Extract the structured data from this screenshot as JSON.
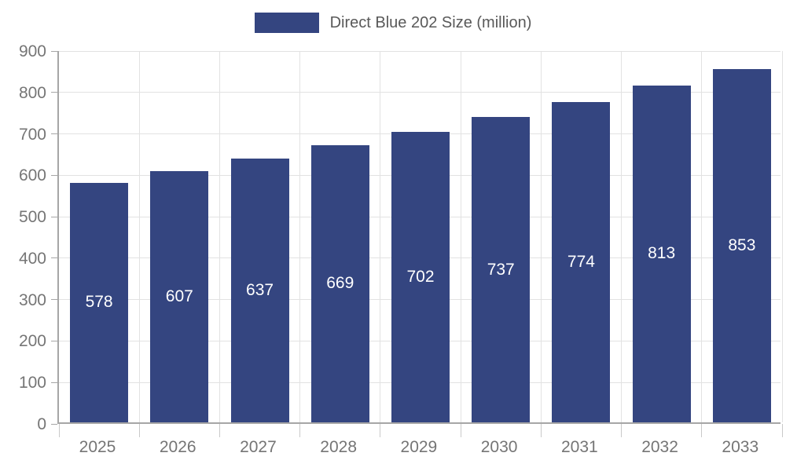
{
  "legend": {
    "label": "Direct Blue 202 Size (million)"
  },
  "chart_data": {
    "type": "bar",
    "title": "Direct Blue 202 Size (million)",
    "categories": [
      "2025",
      "2026",
      "2027",
      "2028",
      "2029",
      "2030",
      "2031",
      "2032",
      "2033"
    ],
    "values": [
      578,
      607,
      637,
      669,
      702,
      737,
      774,
      813,
      853
    ],
    "xlabel": "",
    "ylabel": "",
    "ylim": [
      0,
      900
    ],
    "ytick_interval": 100,
    "ytick_labels": [
      "0",
      "100",
      "200",
      "300",
      "400",
      "500",
      "600",
      "700",
      "800",
      "900"
    ],
    "grid": true,
    "legend_position": "top-center",
    "value_labels": "inside-center",
    "colors": {
      "bar": "#344580",
      "value_label": "#ffffff",
      "axis": "#a6a6a6",
      "gridline": "#e2e2e2",
      "tick_label": "#757575",
      "legend_text": "#595959",
      "background": "#ffffff"
    }
  }
}
